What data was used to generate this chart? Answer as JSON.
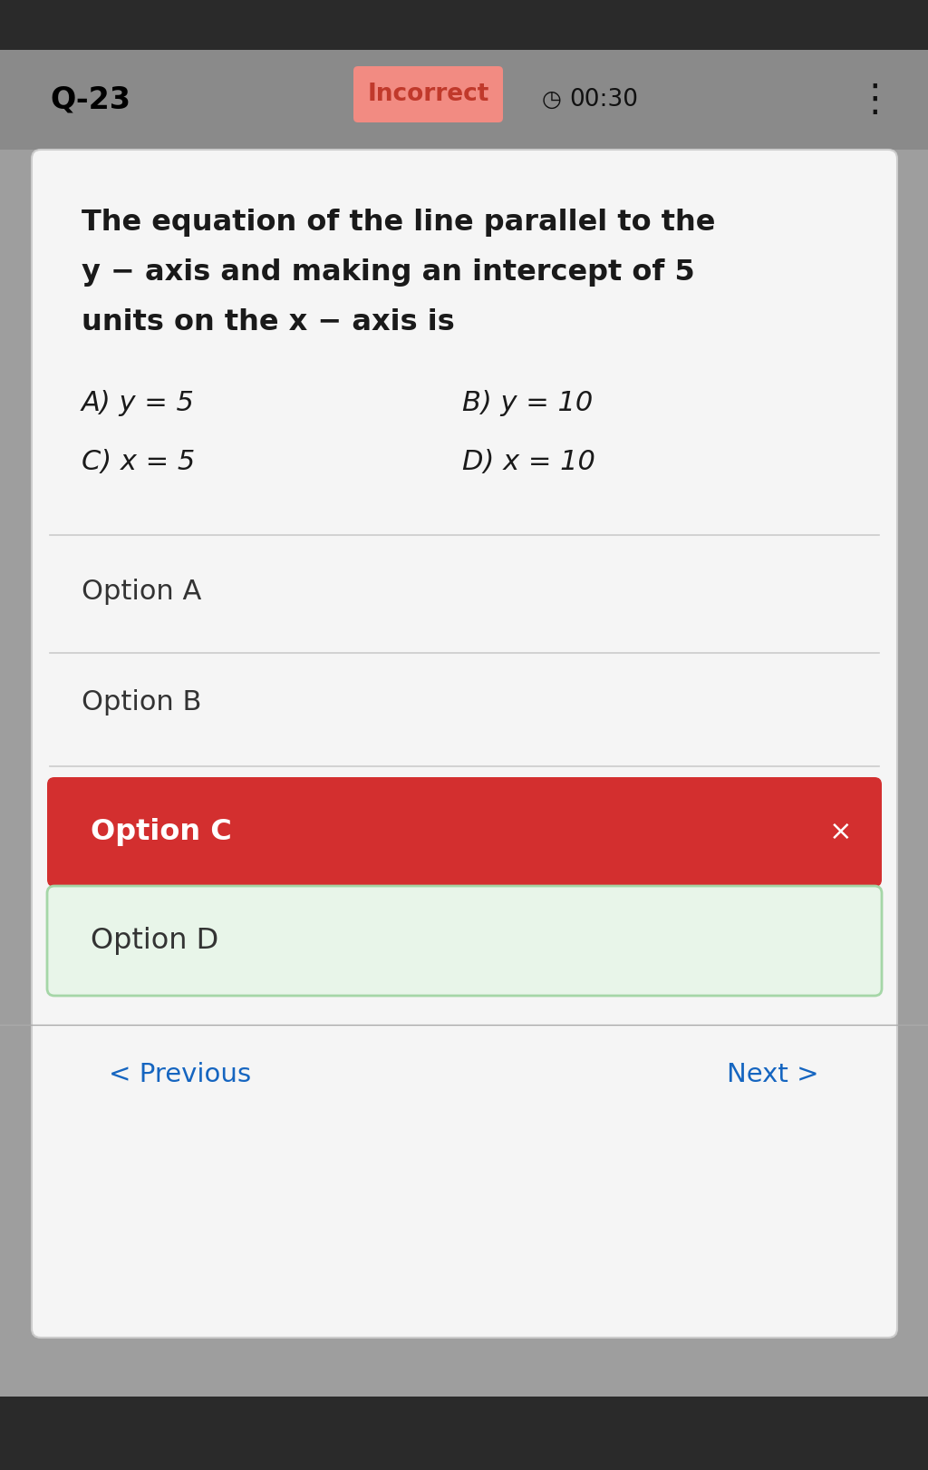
{
  "question_number": "Q-23",
  "status_text": "Incorrect",
  "status_bg": "#f28b82",
  "status_color": "#c0392b",
  "timer_text": "00:30",
  "main_bg": "#9e9e9e",
  "header_bg": "#9e9e9e",
  "card_bg": "#f5f5f5",
  "question_line1": "The equation of the line parallel to the",
  "question_line2": "y − axis and making an intercept of 5",
  "question_line3": "units on the x − axis is",
  "option_a": "A) y = 5",
  "option_b": "B) y = 10",
  "option_c": "C) x = 5",
  "option_d": "D) x = 10",
  "opt_a_label": "Option A",
  "opt_b_label": "Option B",
  "opt_c_label": "Option C",
  "opt_d_label": "Option D",
  "opt_c_bg": "#d32f2f",
  "opt_c_text": "#ffffff",
  "opt_d_bg": "#e8f5e9",
  "opt_d_border": "#a5d6a7",
  "opt_d_text": "#333333",
  "nav_prev": "< Previous",
  "nav_next": "Next >",
  "nav_color": "#1565c0",
  "times_symbol": "×",
  "separator_color": "#cccccc",
  "text_dark": "#1a1a1a",
  "text_gray": "#333333"
}
